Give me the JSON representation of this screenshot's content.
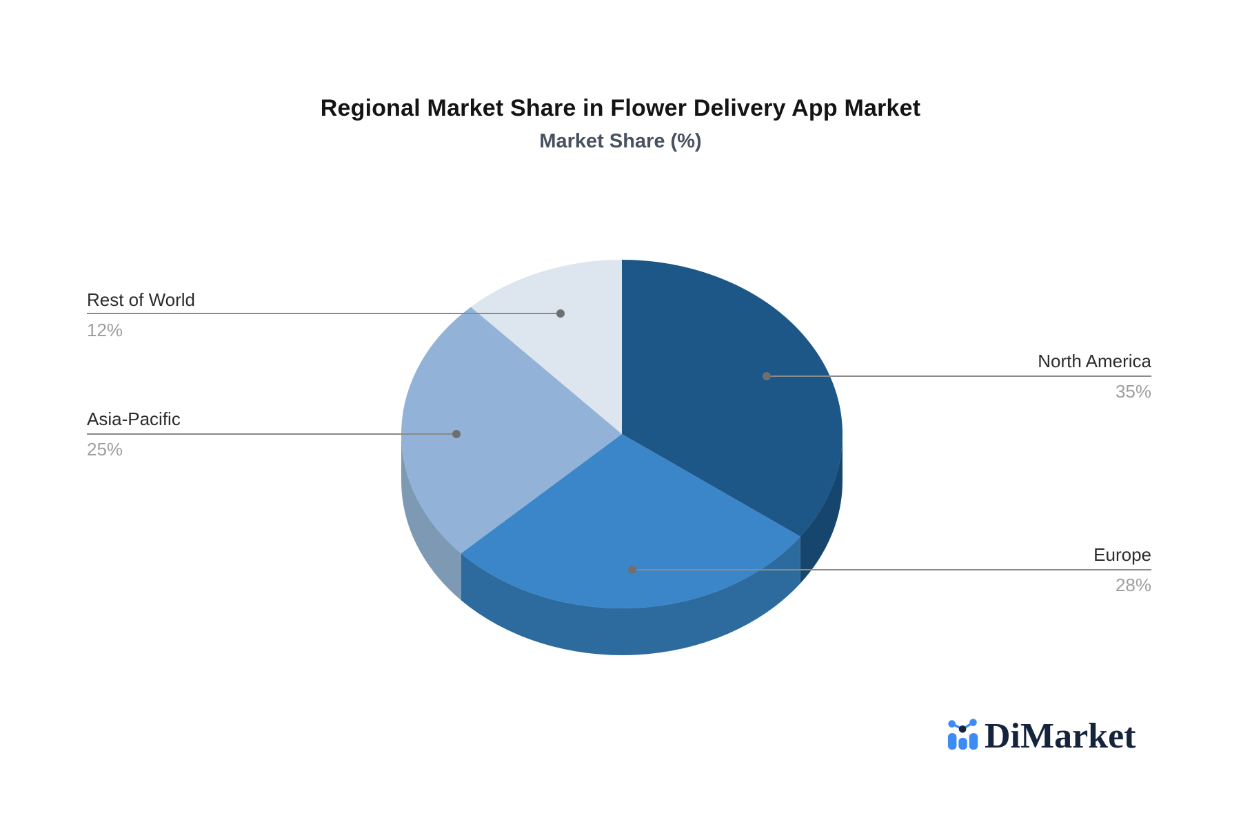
{
  "chart_data": {
    "type": "pie",
    "title": "Regional Market Share in Flower Delivery App Market",
    "subtitle": "Market Share (%)",
    "unit": "%",
    "direction": "clockwise",
    "start_angle_deg": 0,
    "effect_3d": true,
    "legend_position": "callout-labels",
    "background": "#ffffff",
    "slices": [
      {
        "label": "North America",
        "value": 35,
        "display": "35%",
        "color": "#1d5787",
        "side_color": "#16466e"
      },
      {
        "label": "Europe",
        "value": 28,
        "display": "28%",
        "color": "#3a86c8",
        "side_color": "#2d6b9e"
      },
      {
        "label": "Asia-Pacific",
        "value": 25,
        "display": "25%",
        "color": "#92b3d7",
        "side_color": "#7e99b4"
      },
      {
        "label": "Rest of World",
        "value": 12,
        "display": "12%",
        "color": "#dde5ef",
        "side_color": "#c9d4e4"
      }
    ],
    "callout_line_color": "#8a8a8a",
    "callout_dot_color": "#6f6f6f",
    "label_color": "#2b2b2b",
    "percent_color": "#9e9e9e"
  },
  "branding": {
    "logo_text": "DiMarket",
    "logo_text_color": "#15243c",
    "logo_icon_color": "#3d8bf5",
    "logo_icon_dark_dot": "#15243c"
  }
}
